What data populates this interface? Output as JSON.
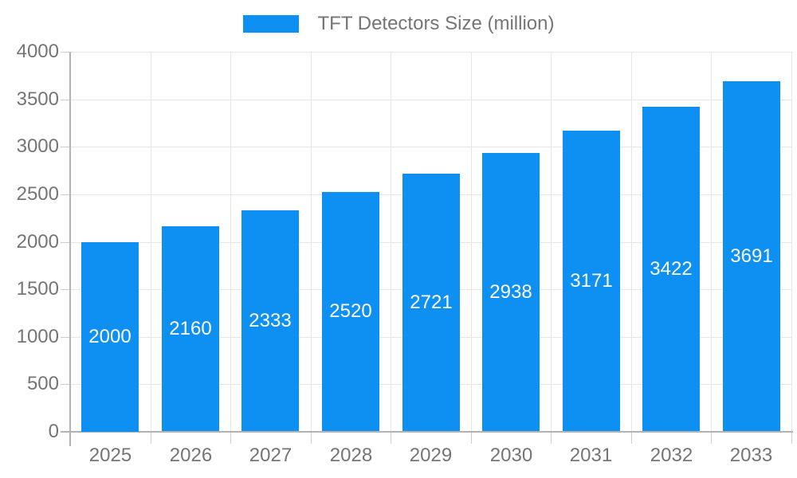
{
  "chart_data": {
    "type": "bar",
    "title": "TFT Detectors Size (million)",
    "series_name": "TFT Detectors Size (million)",
    "categories": [
      "2025",
      "2026",
      "2027",
      "2028",
      "2029",
      "2030",
      "2031",
      "2032",
      "2033"
    ],
    "values": [
      2000,
      2160,
      2333,
      2520,
      2721,
      2938,
      3171,
      3422,
      3691
    ],
    "xlabel": "",
    "ylabel": "",
    "ylim": [
      0,
      4000
    ],
    "yticks": [
      0,
      500,
      1000,
      1500,
      2000,
      2500,
      3000,
      3500,
      4000
    ],
    "grid": true,
    "legend_position": "top",
    "bar_labels_inside": true
  },
  "colors": {
    "bar": "#0d90f2",
    "bar_label": "#ffffff",
    "axis_text": "#757575",
    "legend_text": "#757575",
    "gridline": "#e6e6e6",
    "axis_line": "#b3b3b3",
    "tick": "#cccccc",
    "background": "#ffffff"
  }
}
